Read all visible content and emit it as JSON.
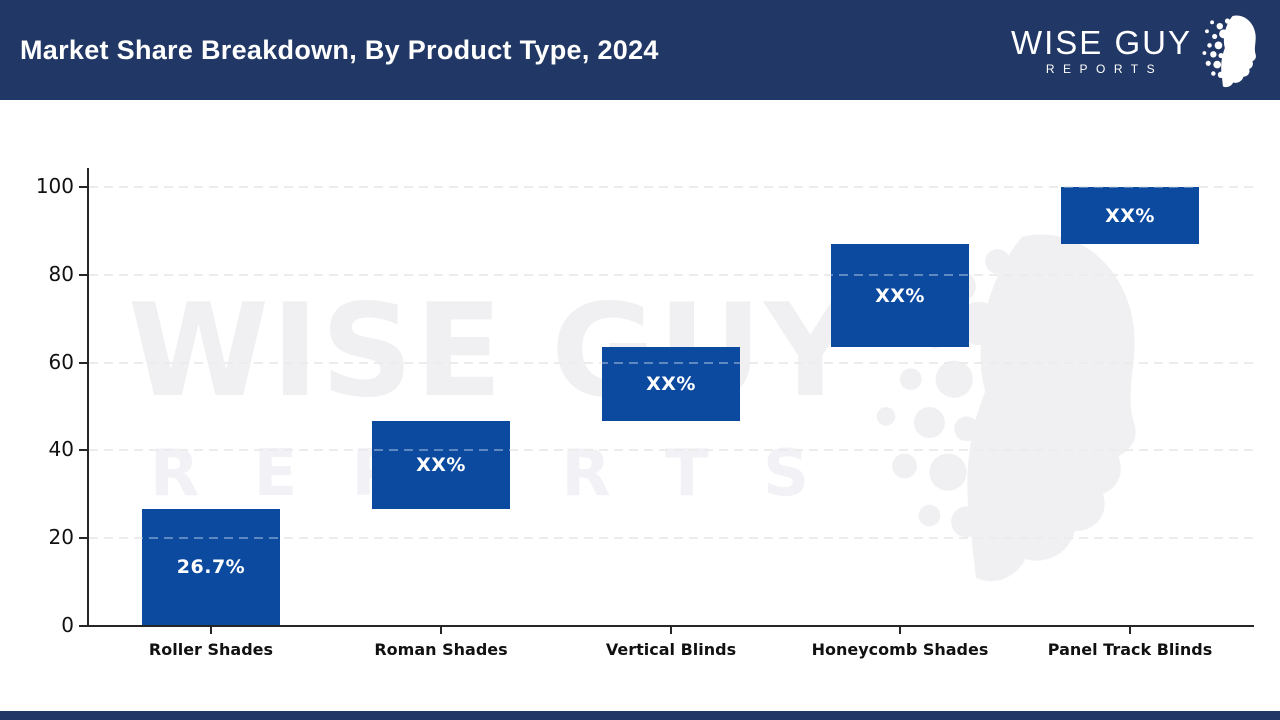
{
  "header": {
    "title": "Market Share Breakdown, By Product Type, 2024",
    "logo": {
      "line1": "WISE GUY",
      "line2": "REPORTS"
    }
  },
  "watermark": {
    "line1": "WISE GUY",
    "line2": "R E P O R T S"
  },
  "colors": {
    "header_bg": "#213765",
    "footer_bg": "#213765",
    "bar": "#0b4a9e",
    "bar_label": "#ffffff",
    "axis": "#262626",
    "grid": "#e2e2e2",
    "tick_label": "#111111",
    "watermark": "#f0f0f3"
  },
  "chart_data": {
    "type": "bar",
    "subtype": "floating-waterfall",
    "title": "Market Share Breakdown, By Product Type, 2024",
    "categories": [
      "Roller Shades",
      "Roman Shades",
      "Vertical Blinds",
      "Honeycomb Shades",
      "Panel Track Blinds"
    ],
    "bars": [
      {
        "category": "Roller Shades",
        "start": 0,
        "end": 26.7,
        "label": "26.7%"
      },
      {
        "category": "Roman Shades",
        "start": 26.7,
        "end": 46.7,
        "label": "XX%"
      },
      {
        "category": "Vertical Blinds",
        "start": 46.7,
        "end": 63.5,
        "label": "XX%"
      },
      {
        "category": "Honeycomb Shades",
        "start": 63.5,
        "end": 87.0,
        "label": "XX%"
      },
      {
        "category": "Panel Track Blinds",
        "start": 87.0,
        "end": 100.0,
        "label": "XX%"
      }
    ],
    "xlabel": "",
    "ylabel": "",
    "yticks": [
      0,
      20,
      40,
      60,
      80,
      100
    ],
    "ylim": [
      0,
      105
    ],
    "grid": "horizontal-dashed",
    "legend": "none"
  }
}
